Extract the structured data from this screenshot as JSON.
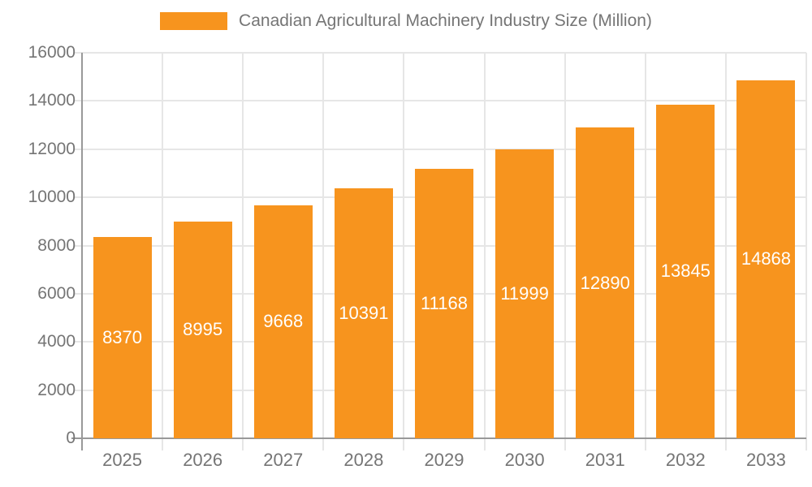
{
  "chart_data": {
    "type": "bar",
    "title": "Canadian Agricultural Machinery Industry Size (Million)",
    "categories": [
      "2025",
      "2026",
      "2027",
      "2028",
      "2029",
      "2030",
      "2031",
      "2032",
      "2033"
    ],
    "values": [
      8370,
      8995,
      9668,
      10391,
      11168,
      11999,
      12890,
      13845,
      14868
    ],
    "value_labels": [
      "8370",
      "8995",
      "9668",
      "10391",
      "11168",
      "11999",
      "12890",
      "13845",
      "14868"
    ],
    "xlabel": "",
    "ylabel": "",
    "ylim": [
      0,
      16000
    ],
    "ytick_step": 2000,
    "yticks": [
      0,
      2000,
      4000,
      6000,
      8000,
      10000,
      12000,
      14000,
      16000
    ],
    "ytick_labels": [
      "0",
      "2000",
      "4000",
      "6000",
      "8000",
      "10000",
      "12000",
      "14000",
      "16000"
    ],
    "grid": "horizontal and vertical gridlines on",
    "legend_position": "top-center",
    "legend_entries": [
      "Canadian Agricultural Machinery Industry Size (Million)"
    ],
    "colors": {
      "bar": "#F7941E",
      "bar_value_text": "#FFFFFF",
      "axis_text": "#757575",
      "legend_text": "#757575",
      "gridline": "#E6E6E6",
      "axis_line": "#999999",
      "background": "#FFFFFF"
    }
  }
}
